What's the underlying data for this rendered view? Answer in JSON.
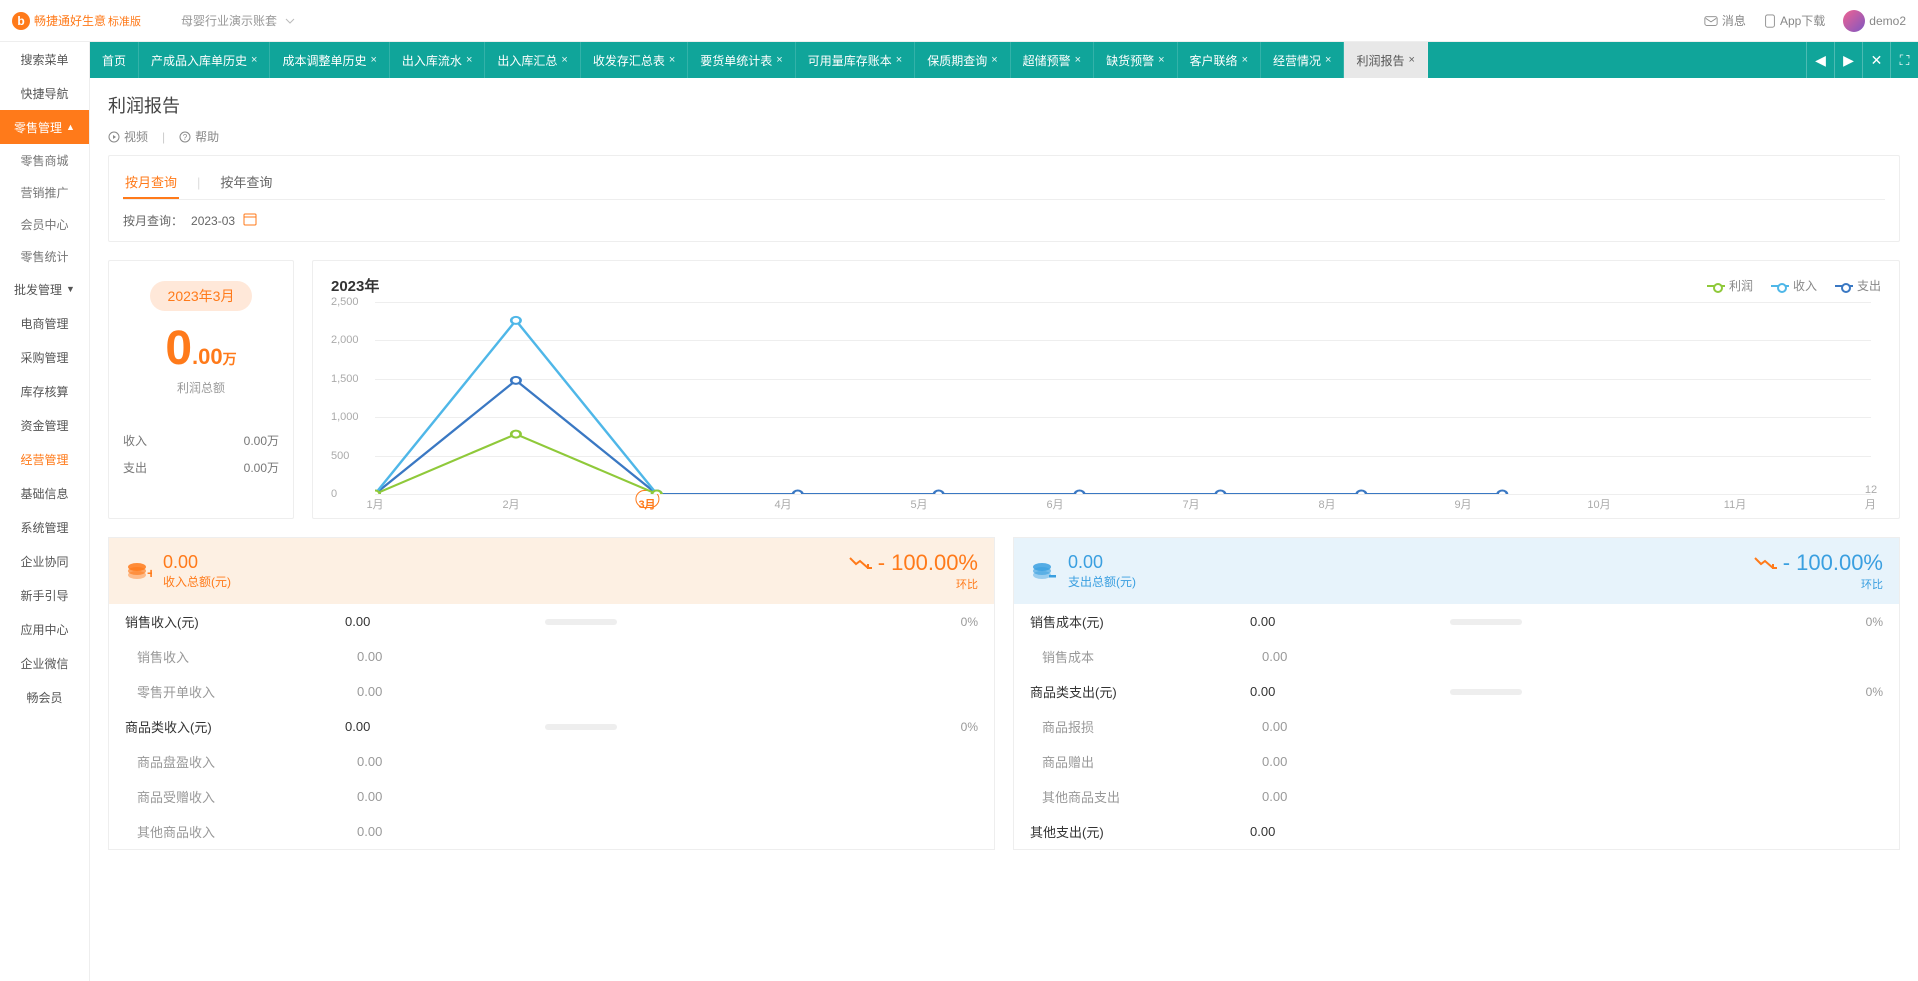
{
  "brand": {
    "mark": "b",
    "text": "畅捷通好生意",
    "sub": "标准版"
  },
  "account_selector": "母婴行业演示账套",
  "topbar": {
    "msg": "消息",
    "app": "App下载",
    "user": "demo2"
  },
  "sidebar": {
    "top": [
      {
        "label": "搜索菜单"
      },
      {
        "label": "快捷导航"
      }
    ],
    "retail_group": "零售管理",
    "retail_subs": [
      "零售商城",
      "营销推广",
      "会员中心",
      "零售统计"
    ],
    "rest": [
      {
        "label": "批发管理",
        "caret": true
      },
      {
        "label": "电商管理"
      },
      {
        "label": "采购管理"
      },
      {
        "label": "库存核算"
      },
      {
        "label": "资金管理"
      },
      {
        "label": "经营管理",
        "hl": true
      },
      {
        "label": "基础信息"
      },
      {
        "label": "系统管理"
      },
      {
        "label": "企业协同"
      },
      {
        "label": "新手引导"
      },
      {
        "label": "应用中心"
      },
      {
        "label": "企业微信"
      },
      {
        "label": "畅会员"
      }
    ]
  },
  "tabs": [
    {
      "label": "首页",
      "closable": false
    },
    {
      "label": "产成品入库单历史",
      "closable": true
    },
    {
      "label": "成本调整单历史",
      "closable": true
    },
    {
      "label": "出入库流水",
      "closable": true
    },
    {
      "label": "出入库汇总",
      "closable": true
    },
    {
      "label": "收发存汇总表",
      "closable": true
    },
    {
      "label": "要货单统计表",
      "closable": true
    },
    {
      "label": "可用量库存账本",
      "closable": true
    },
    {
      "label": "保质期查询",
      "closable": true
    },
    {
      "label": "超储预警",
      "closable": true
    },
    {
      "label": "缺货预警",
      "closable": true
    },
    {
      "label": "客户联络",
      "closable": true
    },
    {
      "label": "经营情况",
      "closable": true
    },
    {
      "label": "利润报告",
      "closable": true,
      "active": true
    }
  ],
  "page_title": "利润报告",
  "help": {
    "video": "视频",
    "help": "帮助"
  },
  "query": {
    "tabs": [
      "按月查询",
      "按年查询"
    ],
    "active": 0,
    "filter_label": "按月查询：",
    "filter_value": "2023-03"
  },
  "summary": {
    "pill": "2023年3月",
    "big_int": "0",
    "big_dec": ".00",
    "big_unit": "万",
    "big_label": "利润总额",
    "rows": [
      {
        "k": "收入",
        "v": "0.00万"
      },
      {
        "k": "支出",
        "v": "0.00万"
      }
    ]
  },
  "chart": {
    "title": "2023年",
    "legend": [
      {
        "name": "利润",
        "color": "#8fc93a"
      },
      {
        "name": "收入",
        "color": "#4fb7e8"
      },
      {
        "name": "支出",
        "color": "#3a78c3"
      }
    ],
    "ylim": [
      0,
      2500
    ],
    "ytick_step": 500,
    "yticks": [
      "0",
      "500",
      "1,000",
      "1,500",
      "2,000",
      "2,500"
    ],
    "xlabels": [
      "1月",
      "2月",
      "3月",
      "4月",
      "5月",
      "6月",
      "7月",
      "8月",
      "9月",
      "10月",
      "11月",
      "12月"
    ],
    "highlight_x": 2,
    "series": {
      "profit": [
        0,
        780,
        0,
        0,
        0,
        0,
        0,
        0,
        0,
        0,
        0,
        0
      ],
      "income": [
        0,
        2260,
        0,
        0,
        0,
        0,
        0,
        0,
        0,
        0,
        0,
        0
      ],
      "expense": [
        0,
        1480,
        0,
        0,
        0,
        0,
        0,
        0,
        0,
        0,
        0,
        0
      ]
    },
    "line_points": {
      "profit": 3,
      "income": 3,
      "expense": 9
    },
    "grid_color": "#eeeeee",
    "background": "#ffffff"
  },
  "income_panel": {
    "amount": "0.00",
    "label": "收入总额(元)",
    "hb_label": "环比",
    "trend": "- 100.00%",
    "rows": [
      {
        "name": "销售收入(元)",
        "val": "0.00",
        "pct": "0%",
        "bold": true
      },
      {
        "name": "销售收入",
        "val": "0.00"
      },
      {
        "name": "零售开单收入",
        "val": "0.00"
      },
      {
        "name": "商品类收入(元)",
        "val": "0.00",
        "pct": "0%",
        "bold": true
      },
      {
        "name": "商品盘盈收入",
        "val": "0.00"
      },
      {
        "name": "商品受赠收入",
        "val": "0.00"
      },
      {
        "name": "其他商品收入",
        "val": "0.00"
      }
    ]
  },
  "expense_panel": {
    "amount": "0.00",
    "label": "支出总额(元)",
    "hb_label": "环比",
    "trend": "- 100.00%",
    "rows": [
      {
        "name": "销售成本(元)",
        "val": "0.00",
        "pct": "0%",
        "bold": true
      },
      {
        "name": "销售成本",
        "val": "0.00"
      },
      {
        "name": "商品类支出(元)",
        "val": "0.00",
        "pct": "0%",
        "bold": true
      },
      {
        "name": "商品报损",
        "val": "0.00"
      },
      {
        "name": "商品赠出",
        "val": "0.00"
      },
      {
        "name": "其他商品支出",
        "val": "0.00"
      },
      {
        "name": "其他支出(元)",
        "val": "0.00",
        "bold": true
      }
    ]
  }
}
